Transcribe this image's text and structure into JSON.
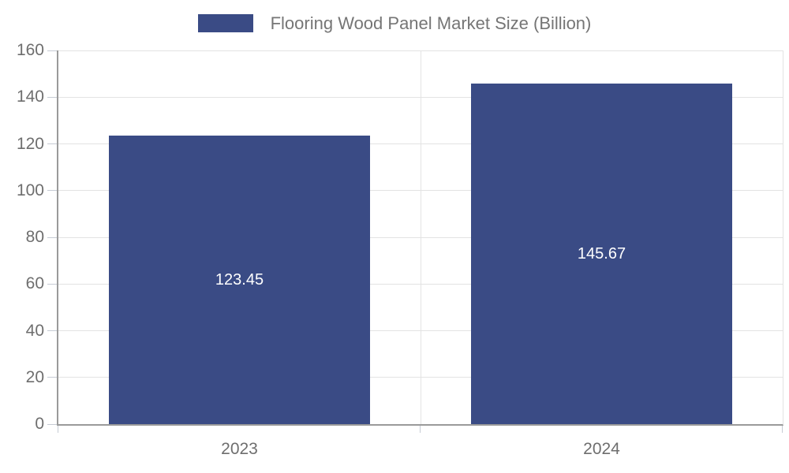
{
  "legend": {
    "label": "Flooring Wood Panel Market Size (Billion)"
  },
  "chart_data": {
    "type": "bar",
    "title": "Flooring Wood Panel Market Size (Billion)",
    "categories": [
      "2023",
      "2024"
    ],
    "series": [
      {
        "name": "Flooring Wood Panel Market Size (Billion)",
        "values": [
          123.45,
          145.67
        ]
      }
    ],
    "value_labels": [
      "123.45",
      "145.67"
    ],
    "xlabel": "",
    "ylabel": "",
    "ylim": [
      0,
      160
    ],
    "yticks": [
      0,
      20,
      40,
      60,
      80,
      100,
      120,
      140,
      160
    ],
    "grid": true,
    "legend_position": "top",
    "bar_width_fraction": 0.72,
    "colors": {
      "bar": "#3A4B85",
      "value_label": "#FFFFFF",
      "axis_text": "#6E6E6E",
      "legend_text": "#757575",
      "gridline": "#E3E3E3",
      "axis_line": "#9A9A9A",
      "tick": "#C6CBD4",
      "background": "#FFFFFF"
    }
  }
}
